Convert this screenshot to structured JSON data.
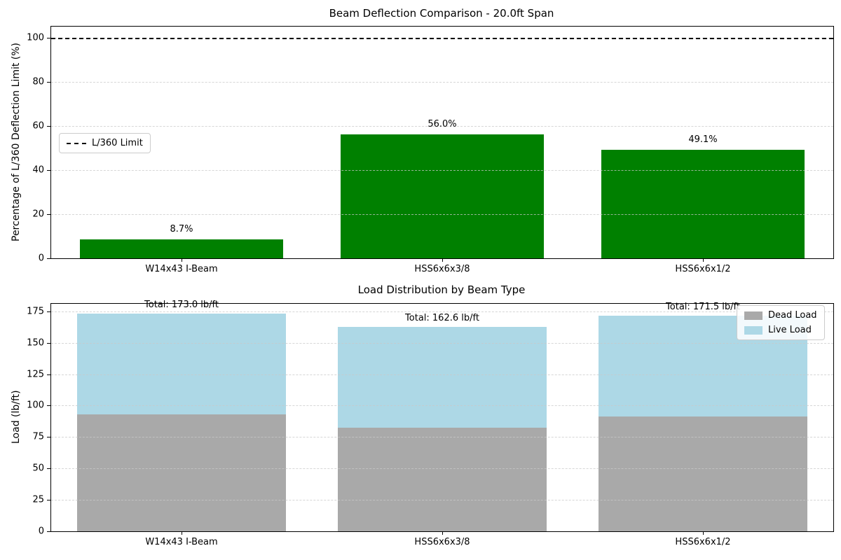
{
  "figure": {
    "background": "#ffffff",
    "text_color": "#000000",
    "grid_color": "#c9c9c9"
  },
  "chart_data": [
    {
      "type": "bar",
      "title": "Beam Deflection Comparison - 20.0ft Span",
      "xlabel": "",
      "ylabel": "Percentage of L/360 Deflection Limit (%)",
      "categories": [
        "W14x43 I-Beam",
        "HSS6x6x3/8",
        "HSS6x6x1/2"
      ],
      "values": [
        8.7,
        56.0,
        49.1
      ],
      "bar_labels": [
        "8.7%",
        "56.0%",
        "49.1%"
      ],
      "bar_color": "#008000",
      "ylim": [
        0,
        105
      ],
      "yticks": [
        0,
        20,
        40,
        60,
        80,
        100
      ],
      "grid": true,
      "reference_line": {
        "value": 100,
        "label": "L/360 Limit",
        "color": "#000000",
        "style": "dashed"
      },
      "legend_position": "center-left"
    },
    {
      "type": "bar",
      "stacked": true,
      "title": "Load Distribution by Beam Type",
      "xlabel": "",
      "ylabel": "Load (lb/ft)",
      "categories": [
        "W14x43 I-Beam",
        "HSS6x6x3/8",
        "HSS6x6x1/2"
      ],
      "series": [
        {
          "name": "Dead Load",
          "color": "#a9a9a9",
          "values": [
            93.0,
            82.6,
            91.5
          ]
        },
        {
          "name": "Live Load",
          "color": "#add8e6",
          "values": [
            80.0,
            80.0,
            80.0
          ]
        }
      ],
      "totals": [
        173.0,
        162.6,
        171.5
      ],
      "total_labels": [
        "Total: 173.0 lb/ft",
        "Total: 162.6 lb/ft",
        "Total: 171.5 lb/ft"
      ],
      "ylim": [
        0,
        181
      ],
      "yticks": [
        0,
        25,
        50,
        75,
        100,
        125,
        150,
        175
      ],
      "grid": true,
      "legend_position": "upper-right"
    }
  ]
}
